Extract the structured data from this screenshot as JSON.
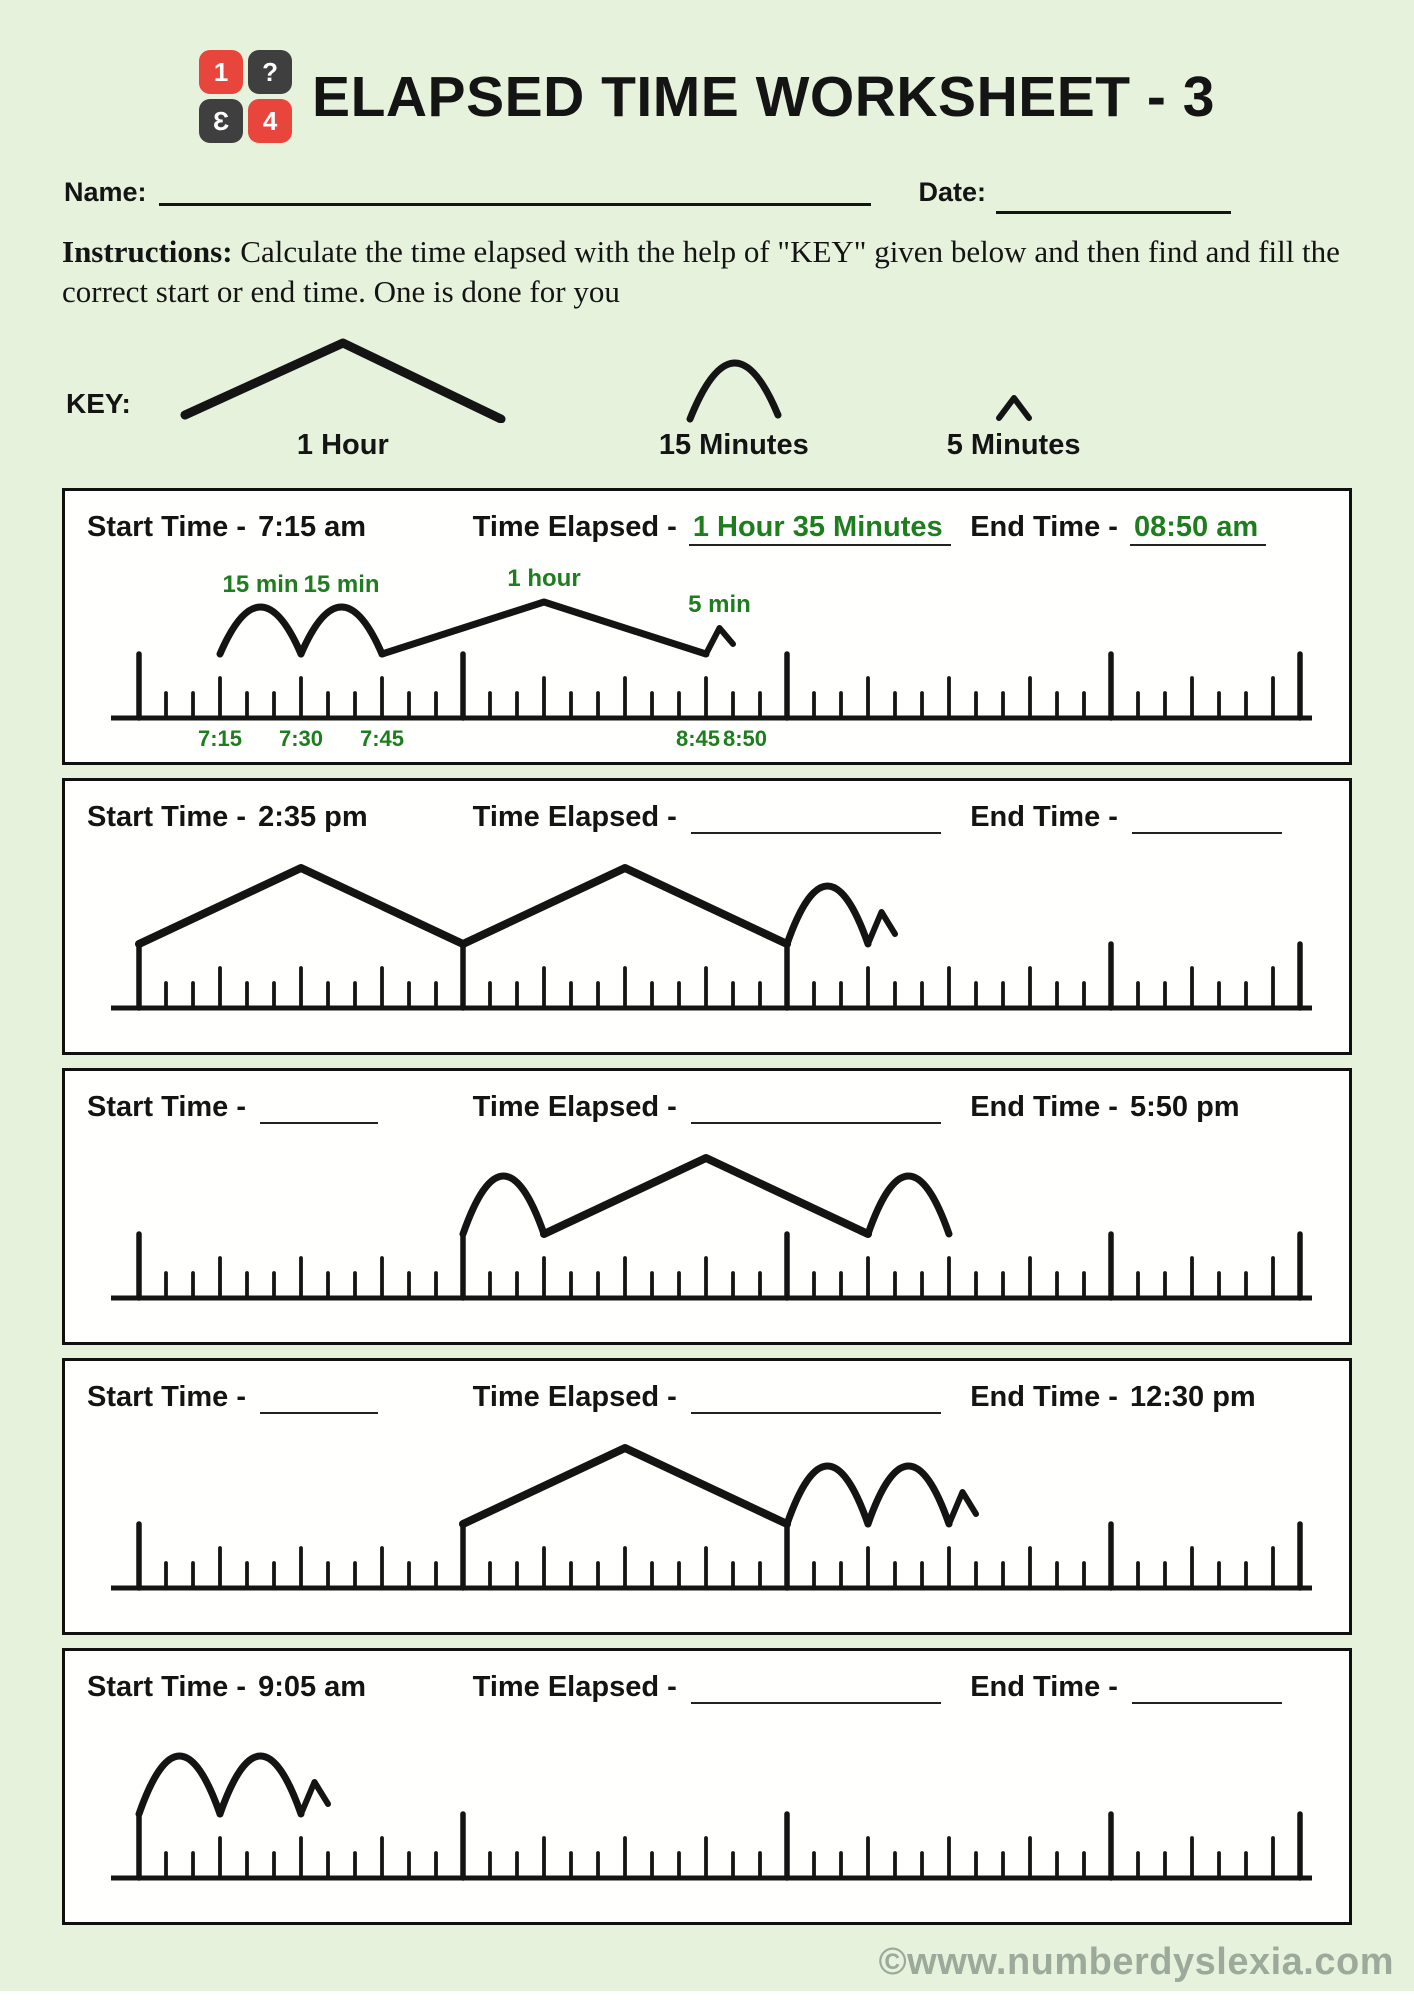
{
  "page": {
    "title": "ELAPSED TIME WORKSHEET - 3",
    "name_label": "Name:",
    "date_label": "Date:",
    "instructions_bold": "Instructions:",
    "instructions_text": " Calculate the time elapsed with the help of \"KEY\" given below and then find and fill the correct start or end time. One is done for you",
    "footer": "©www.numberdyslexia.com",
    "logo_cells": [
      {
        "char": "1",
        "color": "red"
      },
      {
        "char": "?",
        "color": "dark"
      },
      {
        "char": "Ɛ",
        "color": "dark"
      },
      {
        "char": "4",
        "color": "red"
      }
    ]
  },
  "key": {
    "label": "KEY:",
    "items": [
      {
        "name": "hour",
        "caption": "1 Hour"
      },
      {
        "name": "quarter",
        "caption": "15 Minutes"
      },
      {
        "name": "five",
        "caption": "5 Minutes"
      }
    ]
  },
  "colors": {
    "background": "#e6f2dc",
    "ink": "#141414",
    "green": "#1e7d1e",
    "logo_red": "#e8453c",
    "logo_dark": "#3f3f3f",
    "footer_gray": "#9baa9b"
  },
  "problems": [
    {
      "fields": {
        "start": {
          "label": "Start Time - ",
          "value": "7:15 am",
          "style": "given"
        },
        "elapsed": {
          "label": "Time Elapsed - ",
          "value": "1 Hour 35 Minutes",
          "style": "answer"
        },
        "end": {
          "label": "End Time - ",
          "value": "08:50 am",
          "style": "answer"
        }
      },
      "ruler": {
        "segments": [
          {
            "kind": "arch15",
            "from": 3,
            "to": 6,
            "label": "15 min"
          },
          {
            "kind": "arch15",
            "from": 6,
            "to": 9,
            "label": "15 min"
          },
          {
            "kind": "tent60",
            "from": 9,
            "to": 21,
            "label": "1 hour"
          },
          {
            "kind": "caret5",
            "from": 21,
            "to": 22,
            "label": "5 min"
          }
        ],
        "tick_labels": [
          {
            "tick": 3,
            "text": "7:15",
            "nudge": 0
          },
          {
            "tick": 6,
            "text": "7:30",
            "nudge": 0
          },
          {
            "tick": 9,
            "text": "7:45",
            "nudge": 0
          },
          {
            "tick": 21,
            "text": "8:45",
            "nudge": -8
          },
          {
            "tick": 22,
            "text": "8:50",
            "nudge": 12
          }
        ]
      }
    },
    {
      "fields": {
        "start": {
          "label": "Start Time - ",
          "value": "2:35 pm",
          "style": "given"
        },
        "elapsed": {
          "label": "Time Elapsed - ",
          "value": "",
          "style": "blank"
        },
        "end": {
          "label": "End Time - ",
          "value": "",
          "style": "blank"
        }
      },
      "ruler": {
        "segments": [
          {
            "kind": "tent60",
            "from": 0,
            "to": 12
          },
          {
            "kind": "tent60",
            "from": 12,
            "to": 24
          },
          {
            "kind": "arch15",
            "from": 24,
            "to": 27
          },
          {
            "kind": "caret5",
            "from": 27,
            "to": 28
          }
        ],
        "tick_labels": []
      }
    },
    {
      "fields": {
        "start": {
          "label": "Start Time - ",
          "value": "",
          "style": "blank"
        },
        "elapsed": {
          "label": "Time Elapsed - ",
          "value": "",
          "style": "blank"
        },
        "end": {
          "label": "End Time - ",
          "value": "5:50 pm",
          "style": "given"
        }
      },
      "ruler": {
        "segments": [
          {
            "kind": "arch15",
            "from": 12,
            "to": 15
          },
          {
            "kind": "tent60",
            "from": 15,
            "to": 27
          },
          {
            "kind": "arch15",
            "from": 27,
            "to": 30
          }
        ],
        "tick_labels": []
      }
    },
    {
      "fields": {
        "start": {
          "label": "Start Time - ",
          "value": "",
          "style": "blank"
        },
        "elapsed": {
          "label": "Time Elapsed - ",
          "value": "",
          "style": "blank"
        },
        "end": {
          "label": "End Time - ",
          "value": "12:30 pm",
          "style": "given"
        }
      },
      "ruler": {
        "segments": [
          {
            "kind": "tent60",
            "from": 12,
            "to": 24
          },
          {
            "kind": "arch15",
            "from": 24,
            "to": 27
          },
          {
            "kind": "arch15",
            "from": 27,
            "to": 30
          },
          {
            "kind": "caret5",
            "from": 30,
            "to": 31
          }
        ],
        "tick_labels": []
      }
    },
    {
      "fields": {
        "start": {
          "label": "Start Time - ",
          "value": "9:05 am",
          "style": "given"
        },
        "elapsed": {
          "label": "Time Elapsed - ",
          "value": "",
          "style": "blank"
        },
        "end": {
          "label": "End Time - ",
          "value": "",
          "style": "blank"
        }
      },
      "ruler": {
        "segments": [
          {
            "kind": "arch15",
            "from": 0,
            "to": 3
          },
          {
            "kind": "arch15",
            "from": 3,
            "to": 6
          },
          {
            "kind": "caret5",
            "from": 6,
            "to": 7
          }
        ],
        "tick_labels": []
      }
    }
  ]
}
